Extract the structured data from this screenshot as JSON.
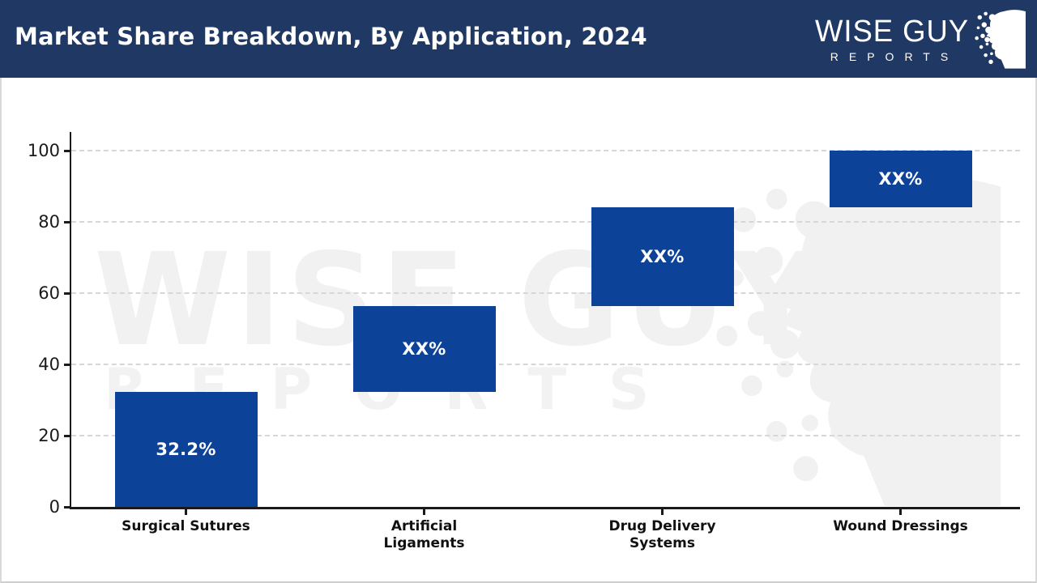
{
  "header": {
    "title": "Market Share Breakdown, By Application, 2024",
    "bg_color": "#1f3864",
    "logo": {
      "wordmark": "WISE GUY",
      "subtext": "REPORTS"
    }
  },
  "watermark": {
    "line1": "WISE GUY",
    "line2": "REPORTS"
  },
  "chart_data": {
    "type": "bar",
    "subtype": "waterfall",
    "title": "Market Share Breakdown, By Application, 2024",
    "categories": [
      "Surgical Sutures",
      "Artificial Ligaments",
      "Drug Delivery Systems",
      "Wound Dressings"
    ],
    "x_labels": [
      "Surgical Sutures",
      "Artificial\nLigaments",
      "Drug Delivery\nSystems",
      "Wound Dressings"
    ],
    "segments": [
      {
        "category": "Surgical Sutures",
        "start": 0,
        "end": 32.2,
        "label": "32.2%"
      },
      {
        "category": "Artificial Ligaments",
        "start": 32.2,
        "end": 56.3,
        "label": "XX%"
      },
      {
        "category": "Drug Delivery Systems",
        "start": 56.3,
        "end": 84.2,
        "label": "XX%"
      },
      {
        "category": "Wound Dressings",
        "start": 84.2,
        "end": 100,
        "label": "XX%"
      }
    ],
    "y_ticks": [
      0,
      20,
      40,
      60,
      80,
      100
    ],
    "ylim": [
      0,
      105
    ],
    "xlabel": "",
    "ylabel": "",
    "bar_color": "#0d4299",
    "bar_label_color": "#ffffff",
    "grid": {
      "horizontal": true,
      "style": "dashed",
      "color": "#d7d7d7"
    },
    "legend": "none"
  }
}
